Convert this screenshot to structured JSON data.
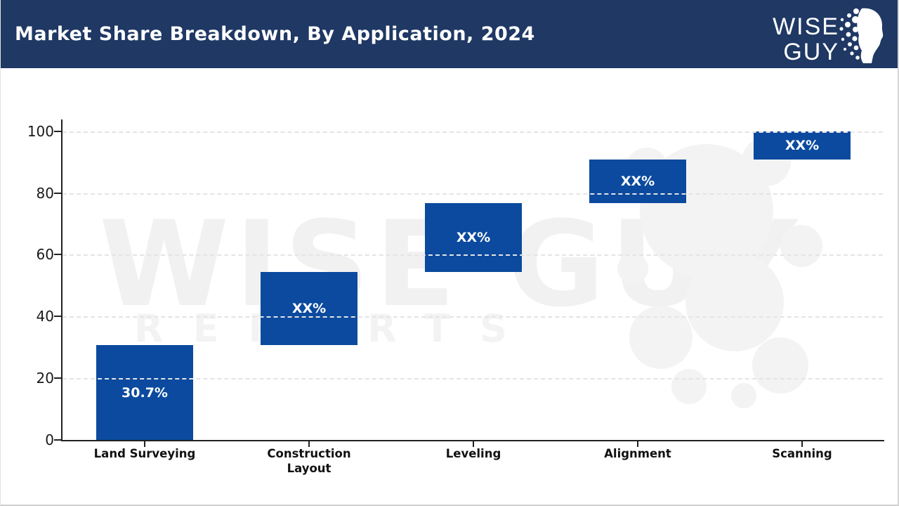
{
  "header": {
    "title": "Market Share Breakdown, By Application, 2024",
    "bg_color": "#1F3864",
    "logo": {
      "line1": "WISE GUY",
      "line2": "REPORTS"
    }
  },
  "watermark": {
    "line1": "WISE GUY",
    "line2": "REPORTS"
  },
  "chart_data": {
    "type": "bar",
    "subtype": "waterfall",
    "title": "Market Share Breakdown, By Application, 2024",
    "xlabel": "",
    "ylabel": "",
    "categories": [
      "Land Surveying",
      "Construction Layout",
      "Leveling",
      "Alignment",
      "Scanning"
    ],
    "segments": [
      {
        "category": "Land Surveying",
        "start": 0,
        "end": 30.7,
        "label": "30.7%"
      },
      {
        "category": "Construction Layout",
        "start": 30.7,
        "end": 54.5,
        "label": "XX%"
      },
      {
        "category": "Leveling",
        "start": 54.5,
        "end": 76.8,
        "label": "XX%"
      },
      {
        "category": "Alignment",
        "start": 76.8,
        "end": 90.9,
        "label": "XX%"
      },
      {
        "category": "Scanning",
        "start": 90.9,
        "end": 100.0,
        "label": "XX%"
      }
    ],
    "yticks": [
      0,
      20,
      40,
      60,
      80,
      100
    ],
    "ylim": [
      0,
      103.8
    ],
    "grid": "horizontal-dashed",
    "legend": "none",
    "bar_color": "#0B4A9E",
    "grid_color": "#E4E4E4",
    "axis_color": "#212121",
    "label_color": "#FFFFFF"
  }
}
